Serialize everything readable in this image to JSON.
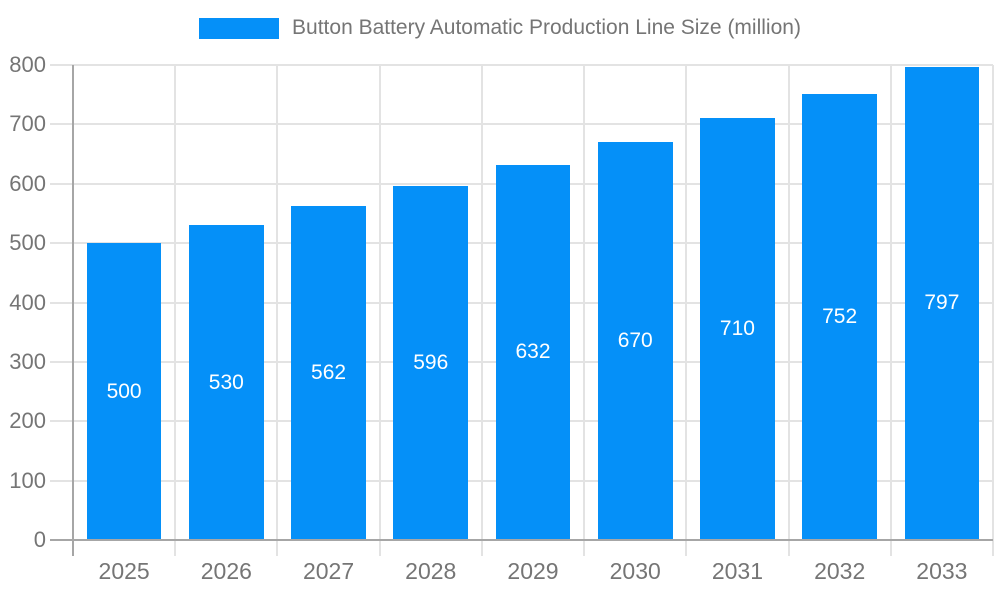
{
  "colors": {
    "background": "#FFFFFF",
    "bar": "#0590F8",
    "bar_label_text": "#FFFFFF",
    "axis_text": "#757575",
    "legend_text": "#757575",
    "grid_line": "#E3E3E3",
    "axis_line": "#A6A6A6"
  },
  "legend": {
    "label": "Button Battery Automatic Production Line Size (million)"
  },
  "chart_data": {
    "type": "bar",
    "title": "Button Battery Automatic Production Line Size (million)",
    "categories": [
      "2025",
      "2026",
      "2027",
      "2028",
      "2029",
      "2030",
      "2031",
      "2032",
      "2033"
    ],
    "values": [
      500,
      530,
      562,
      596,
      632,
      670,
      710,
      752,
      797
    ],
    "xlabel": "",
    "ylabel": "",
    "ylim": [
      0,
      800
    ],
    "y_tick_step": 100,
    "y_tick_labels": [
      "0",
      "100",
      "200",
      "300",
      "400",
      "500",
      "600",
      "700",
      "800"
    ],
    "grid": "horizontal lines at every 100 and vertical lines at category boundaries, light gray, extending past axes as ticks",
    "legend_position": "top-center",
    "bar_value_labels": "white, centered vertically inside each bar"
  }
}
